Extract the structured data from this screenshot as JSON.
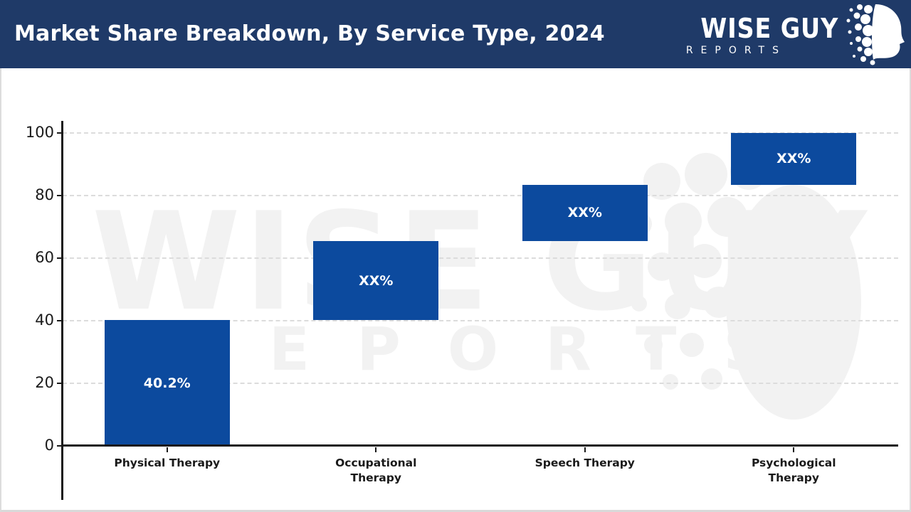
{
  "header": {
    "title": "Market Share Breakdown, By Service Type, 2024",
    "logo": {
      "line1": "WISE GUY",
      "line2": "REPORTS"
    }
  },
  "watermark": {
    "line1": "WISE GUY",
    "line2": "REPORTS"
  },
  "colors": {
    "header_bg": "#1f3a68",
    "bar_blue": "#0c4a9e",
    "gridline": "#dcdcdc",
    "axis": "#1a1a1a",
    "value_label": "#ffffff",
    "watermark": "#f2f2f2",
    "page_border": "#d9d9d9"
  },
  "chart_data": {
    "type": "bar",
    "subtype": "waterfall",
    "title": "Market Share Breakdown, By Service Type, 2024",
    "xlabel": "",
    "ylabel": "",
    "categories": [
      "Physical Therapy",
      "Occupational\nTherapy",
      "Speech Therapy",
      "Psychological\nTherapy"
    ],
    "bars": [
      {
        "category": "Physical Therapy",
        "start": 0,
        "end": 40.2,
        "label": "40.2%"
      },
      {
        "category": "Occupational Therapy",
        "start": 40.2,
        "end": 65.4,
        "label": "XX%"
      },
      {
        "category": "Speech Therapy",
        "start": 65.4,
        "end": 83.5,
        "label": "XX%"
      },
      {
        "category": "Psychological Therapy",
        "start": 83.5,
        "end": 100,
        "label": "XX%"
      }
    ],
    "ylim": [
      0,
      100
    ],
    "yticks": [
      0,
      20,
      40,
      60,
      80,
      100
    ],
    "grid": "horizontal-dashed",
    "legend": "none",
    "bar_color": "#0c4a9e",
    "value_label_color": "#ffffff"
  }
}
